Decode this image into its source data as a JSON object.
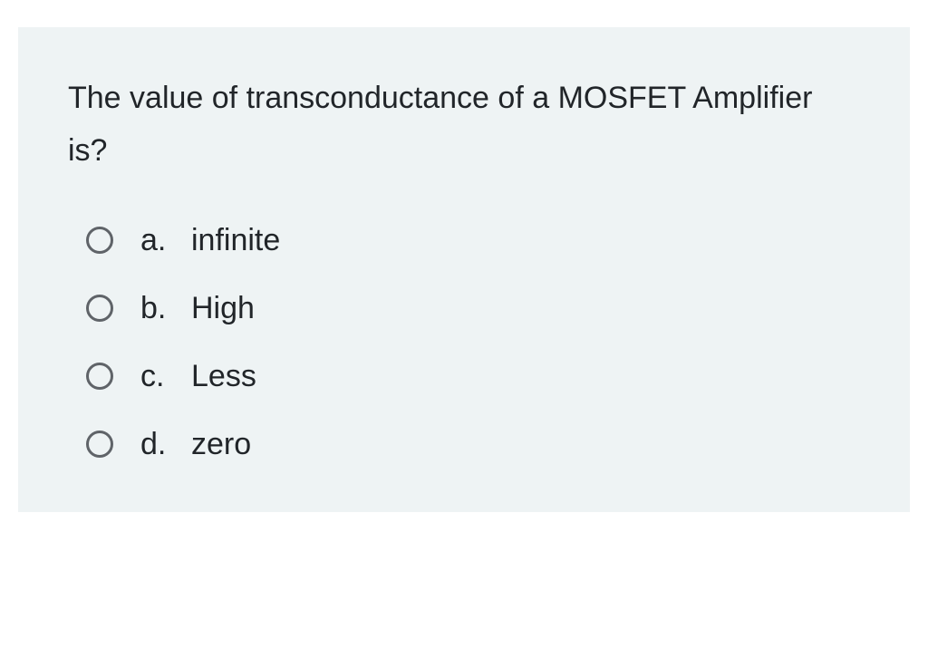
{
  "question": {
    "text": "The value of transconductance of a MOSFET Amplifier is?",
    "card_background": "#eef3f4",
    "text_color": "#212529",
    "font_size": 34
  },
  "options": [
    {
      "letter": "a.",
      "label": "infinite"
    },
    {
      "letter": "b.",
      "label": "High"
    },
    {
      "letter": "c.",
      "label": "Less"
    },
    {
      "letter": "d.",
      "label": "zero"
    }
  ],
  "radio": {
    "border_color": "#5f6368",
    "size": 30
  }
}
